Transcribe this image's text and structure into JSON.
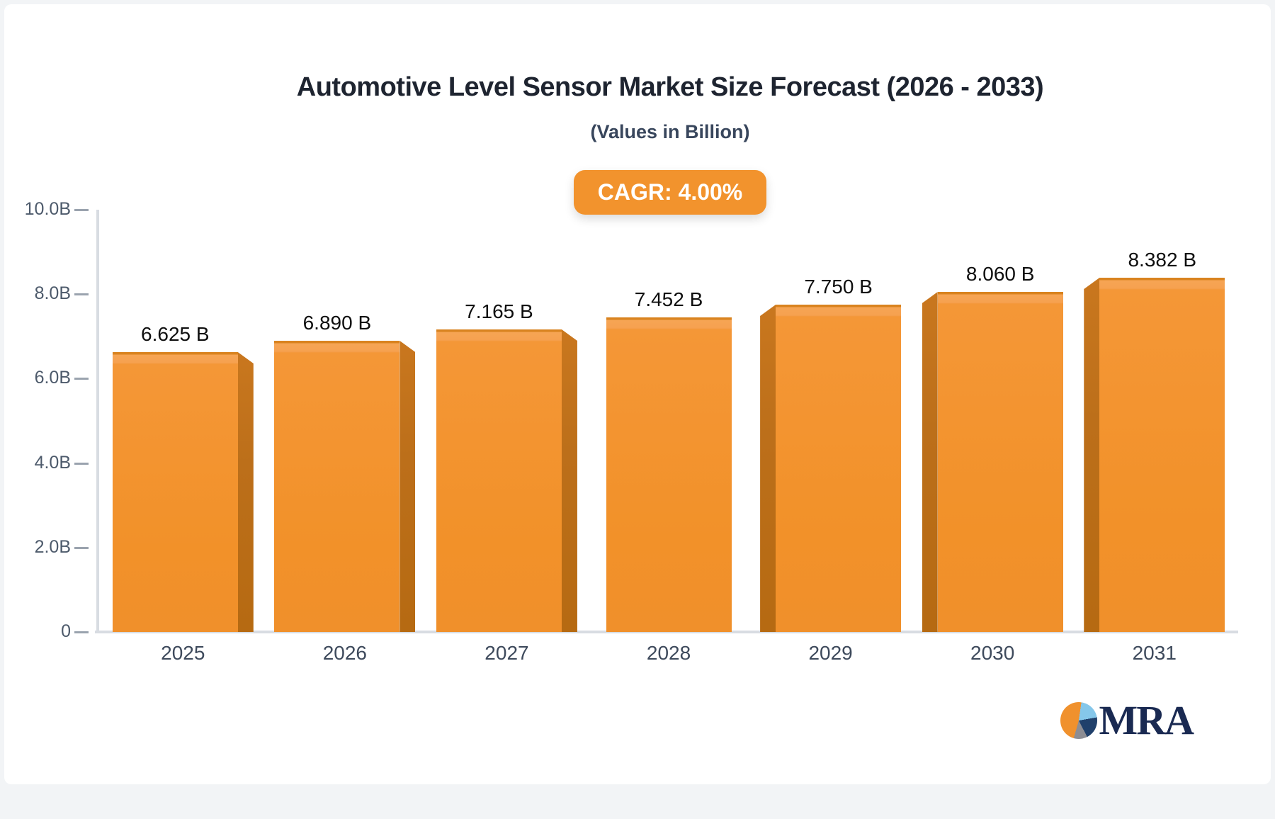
{
  "header": {
    "title": "Automotive Level Sensor Market Size Forecast (2026 - 2033)",
    "subtitle": "(Values in Billion)",
    "cagr_badge": "CAGR: 4.00%"
  },
  "logo": {
    "text": "MRA"
  },
  "colors": {
    "accent_orange": "#F2932D",
    "bar_front": "#F29129",
    "bar_side": "#BC6F1A",
    "bar_top_highlight": "#F6A554",
    "axis_gray": "#D8DCE2",
    "title_text": "#1E2430",
    "tick_text": "#4D5A6B"
  },
  "chart_data": {
    "type": "bar",
    "title": "Automotive Level Sensor Market Size Forecast (2026 - 2033)",
    "subtitle": "(Values in Billion)",
    "xlabel": "",
    "ylabel": "",
    "categories": [
      "2025",
      "2026",
      "2027",
      "2028",
      "2029",
      "2030",
      "2031"
    ],
    "values": [
      6.625,
      6.89,
      7.165,
      7.452,
      7.75,
      8.06,
      8.382
    ],
    "data_labels": [
      "6.625 B",
      "6.890 B",
      "7.165 B",
      "7.452 B",
      "7.750 B",
      "8.060 B",
      "8.382 B"
    ],
    "yticks": [
      {
        "label": "10.0B",
        "value": 10
      },
      {
        "label": "8.0B",
        "value": 8
      },
      {
        "label": "6.0B",
        "value": 6
      },
      {
        "label": "4.0B",
        "value": 4
      },
      {
        "label": "2.0B",
        "value": 2
      },
      {
        "label": "0",
        "value": 0
      }
    ],
    "ylim": [
      0,
      10
    ],
    "grid": false,
    "legend": false,
    "annotation": "CAGR: 4.00%",
    "bar_style": "3d-extruded-center-perspective"
  }
}
